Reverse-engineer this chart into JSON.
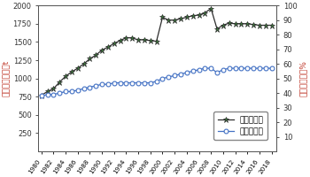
{
  "years": [
    1980,
    1981,
    1982,
    1983,
    1984,
    1985,
    1986,
    1987,
    1988,
    1989,
    1990,
    1991,
    1992,
    1993,
    1994,
    1995,
    1996,
    1997,
    1998,
    1999,
    2000,
    2001,
    2002,
    2003,
    2004,
    2005,
    2006,
    2007,
    2008,
    2009,
    2010,
    2011,
    2012,
    2013,
    2014,
    2015,
    2016,
    2017,
    2018
  ],
  "consumption": [
    770,
    820,
    860,
    950,
    1030,
    1090,
    1140,
    1200,
    1270,
    1320,
    1390,
    1430,
    1480,
    1520,
    1560,
    1555,
    1530,
    1530,
    1520,
    1510,
    1840,
    1800,
    1800,
    1820,
    1840,
    1860,
    1870,
    1900,
    1960,
    1680,
    1730,
    1760,
    1750,
    1750,
    1750,
    1740,
    1730,
    1730,
    1730
  ],
  "utilization": [
    38,
    39,
    39,
    40,
    41,
    41,
    42,
    43,
    44,
    45,
    46,
    46,
    47,
    47,
    47,
    47,
    47,
    47,
    47,
    48,
    50,
    51,
    52,
    53,
    54,
    55,
    56,
    57,
    57,
    54,
    56,
    57,
    57,
    57,
    57,
    57,
    57,
    57,
    57
  ],
  "left_ylim": [
    0,
    2000
  ],
  "left_yticks": [
    250,
    500,
    750,
    1000,
    1250,
    1500,
    1750,
    2000
  ],
  "right_ylim": [
    0,
    100
  ],
  "right_yticks": [
    10,
    20,
    30,
    40,
    50,
    60,
    70,
    80,
    90,
    100
  ],
  "left_ylabel": "废纸消耗量／万t",
  "right_ylabel": "废纸利用率／%",
  "line1_color": "#2c2c2c",
  "line1_marker": "*",
  "line2_color": "#4472c4",
  "line2_marker": "o",
  "legend_label1": "废纸消耗量",
  "legend_label2": "废纸利用率",
  "ylabel_color": "#c0392b",
  "bg_color": "#ffffff"
}
